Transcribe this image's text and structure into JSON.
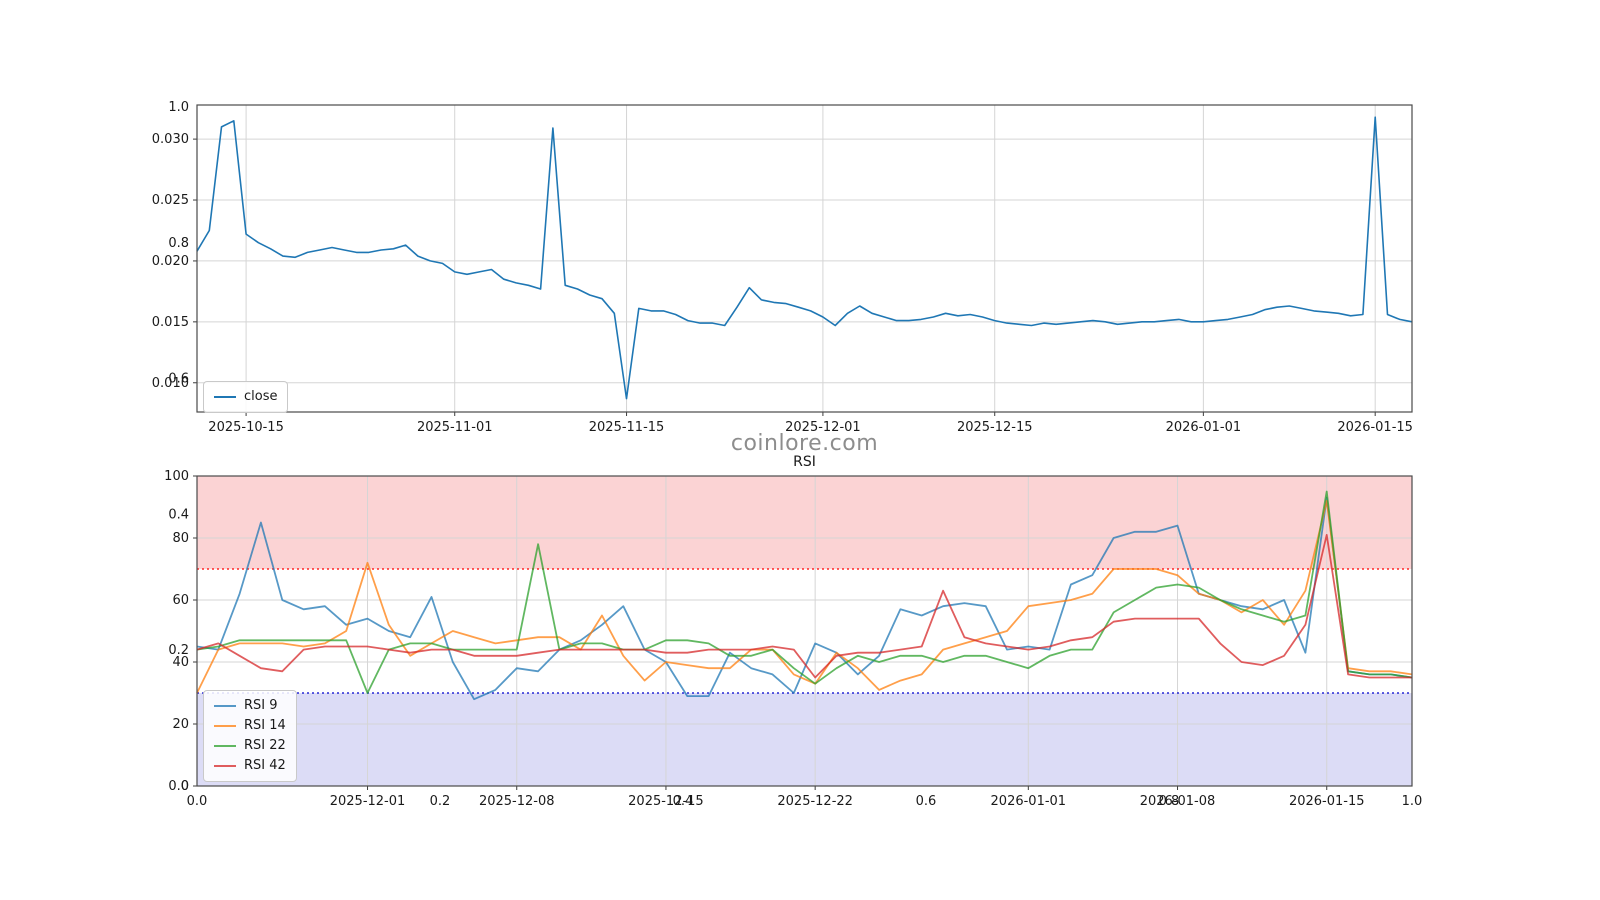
{
  "watermark": "coinlore.com",
  "overlay_axis": {
    "x_labels": [
      "0.0",
      "0.2",
      "0.4",
      "0.6",
      "0.8",
      "1.0"
    ],
    "y_labels": [
      "1.0",
      "0.8",
      "0.6",
      "0.4",
      "0.2",
      "0.0"
    ]
  },
  "chart_data": [
    {
      "type": "line",
      "title": "",
      "grid": true,
      "legend_position": "lower left",
      "ylim": [
        0.0076,
        0.0328
      ],
      "yticks": [
        0.01,
        0.015,
        0.02,
        0.025,
        0.03
      ],
      "ytick_labels": [
        "0.010",
        "0.015",
        "0.020",
        "0.025",
        "0.030"
      ],
      "xtick_labels": [
        "2025-10-15",
        "2025-11-01",
        "2025-11-15",
        "2025-12-01",
        "2025-12-15",
        "2026-01-01",
        "2026-01-15"
      ],
      "xtick_indices": [
        4,
        21,
        35,
        51,
        65,
        82,
        96
      ],
      "dates": [
        "2025-10-11",
        "2025-10-12",
        "2025-10-13",
        "2025-10-14",
        "2025-10-15",
        "2025-10-16",
        "2025-10-17",
        "2025-10-18",
        "2025-10-19",
        "2025-10-20",
        "2025-10-21",
        "2025-10-22",
        "2025-10-23",
        "2025-10-24",
        "2025-10-25",
        "2025-10-26",
        "2025-10-27",
        "2025-10-28",
        "2025-10-29",
        "2025-10-30",
        "2025-10-31",
        "2025-11-01",
        "2025-11-02",
        "2025-11-03",
        "2025-11-04",
        "2025-11-05",
        "2025-11-06",
        "2025-11-07",
        "2025-11-08",
        "2025-11-09",
        "2025-11-10",
        "2025-11-11",
        "2025-11-12",
        "2025-11-13",
        "2025-11-14",
        "2025-11-15",
        "2025-11-16",
        "2025-11-17",
        "2025-11-18",
        "2025-11-19",
        "2025-11-20",
        "2025-11-21",
        "2025-11-22",
        "2025-11-23",
        "2025-11-24",
        "2025-11-25",
        "2025-11-26",
        "2025-11-27",
        "2025-11-28",
        "2025-11-29",
        "2025-11-30",
        "2025-12-01",
        "2025-12-02",
        "2025-12-03",
        "2025-12-04",
        "2025-12-05",
        "2025-12-06",
        "2025-12-07",
        "2025-12-08",
        "2025-12-09",
        "2025-12-10",
        "2025-12-11",
        "2025-12-12",
        "2025-12-13",
        "2025-12-14",
        "2025-12-15",
        "2025-12-16",
        "2025-12-17",
        "2025-12-18",
        "2025-12-19",
        "2025-12-20",
        "2025-12-21",
        "2025-12-22",
        "2025-12-23",
        "2025-12-24",
        "2025-12-25",
        "2025-12-26",
        "2025-12-27",
        "2025-12-28",
        "2025-12-29",
        "2025-12-30",
        "2025-12-31",
        "2026-01-01",
        "2026-01-02",
        "2026-01-03",
        "2026-01-04",
        "2026-01-05",
        "2026-01-06",
        "2026-01-07",
        "2026-01-08",
        "2026-01-09",
        "2026-01-10",
        "2026-01-11",
        "2026-01-12",
        "2026-01-13",
        "2026-01-14",
        "2026-01-15",
        "2026-01-16",
        "2026-01-17",
        "2026-01-18"
      ],
      "series": [
        {
          "name": "close",
          "color": "#1f77b4",
          "values": [
            0.0208,
            0.0225,
            0.031,
            0.0315,
            0.0222,
            0.0215,
            0.021,
            0.0204,
            0.0203,
            0.0207,
            0.0209,
            0.0211,
            0.0209,
            0.0207,
            0.0207,
            0.0209,
            0.021,
            0.0213,
            0.0204,
            0.02,
            0.0198,
            0.0191,
            0.0189,
            0.0191,
            0.0193,
            0.0185,
            0.0182,
            0.018,
            0.0177,
            0.0309,
            0.018,
            0.0177,
            0.0172,
            0.0169,
            0.0157,
            0.0087,
            0.0161,
            0.0159,
            0.0159,
            0.0156,
            0.0151,
            0.0149,
            0.0149,
            0.0147,
            0.0162,
            0.0178,
            0.0168,
            0.0166,
            0.0165,
            0.0162,
            0.0159,
            0.0154,
            0.0147,
            0.0157,
            0.0163,
            0.0157,
            0.0154,
            0.0151,
            0.0151,
            0.0152,
            0.0154,
            0.0157,
            0.0155,
            0.0156,
            0.0154,
            0.0151,
            0.0149,
            0.0148,
            0.0147,
            0.0149,
            0.0148,
            0.0149,
            0.015,
            0.0151,
            0.015,
            0.0148,
            0.0149,
            0.015,
            0.015,
            0.0151,
            0.0152,
            0.015,
            0.015,
            0.0151,
            0.0152,
            0.0154,
            0.0156,
            0.016,
            0.0162,
            0.0163,
            0.0161,
            0.0159,
            0.0158,
            0.0157,
            0.0155,
            0.0156,
            0.0318,
            0.0156,
            0.0152,
            0.015
          ]
        }
      ]
    },
    {
      "type": "line",
      "title": "RSI",
      "grid": true,
      "legend_position": "lower left",
      "ylim": [
        0,
        100
      ],
      "yticks": [
        0,
        20,
        40,
        60,
        80,
        100
      ],
      "ytick_labels": [
        "0",
        "20",
        "40",
        "60",
        "80",
        "100"
      ],
      "overbought": 70,
      "oversold": 30,
      "band_colors": {
        "overbought": "#fbd3d4",
        "oversold": "#dcdcf6"
      },
      "threshold_colors": {
        "overbought": "#ff0000",
        "oversold": "#0000cd"
      },
      "xtick_labels": [
        "2025-12-01",
        "2025-12-08",
        "2025-12-15",
        "2025-12-22",
        "2026-01-01",
        "2026-01-08",
        "2026-01-15"
      ],
      "xtick_indices": [
        8,
        15,
        22,
        29,
        39,
        46,
        53
      ],
      "dates": [
        "2025-11-23",
        "2025-11-24",
        "2025-11-25",
        "2025-11-26",
        "2025-11-27",
        "2025-11-28",
        "2025-11-29",
        "2025-11-30",
        "2025-12-01",
        "2025-12-02",
        "2025-12-03",
        "2025-12-04",
        "2025-12-05",
        "2025-12-06",
        "2025-12-07",
        "2025-12-08",
        "2025-12-09",
        "2025-12-10",
        "2025-12-11",
        "2025-12-12",
        "2025-12-13",
        "2025-12-14",
        "2025-12-15",
        "2025-12-16",
        "2025-12-17",
        "2025-12-18",
        "2025-12-19",
        "2025-12-20",
        "2025-12-21",
        "2025-12-22",
        "2025-12-23",
        "2025-12-24",
        "2025-12-25",
        "2025-12-26",
        "2025-12-27",
        "2025-12-28",
        "2025-12-29",
        "2025-12-30",
        "2025-12-31",
        "2026-01-01",
        "2026-01-02",
        "2026-01-03",
        "2026-01-04",
        "2026-01-05",
        "2026-01-06",
        "2026-01-07",
        "2026-01-08",
        "2026-01-09",
        "2026-01-10",
        "2026-01-11",
        "2026-01-12",
        "2026-01-13",
        "2026-01-14",
        "2026-01-15",
        "2026-01-16",
        "2026-01-17",
        "2026-01-18",
        "2026-01-19"
      ],
      "series": [
        {
          "name": "RSI 9",
          "color": "#1f77b4",
          "values": [
            45,
            44,
            62,
            85,
            60,
            57,
            58,
            52,
            54,
            50,
            48,
            61,
            40,
            28,
            31,
            38,
            37,
            44,
            47,
            52,
            58,
            44,
            40,
            29,
            29,
            43,
            38,
            36,
            30,
            46,
            43,
            36,
            42,
            57,
            55,
            58,
            59,
            58,
            44,
            45,
            44,
            65,
            68,
            80,
            82,
            82,
            84,
            62,
            60,
            58,
            57,
            60,
            43,
            93,
            37,
            36,
            36,
            35
          ]
        },
        {
          "name": "RSI 14",
          "color": "#ff7f0e",
          "values": [
            30,
            44,
            46,
            46,
            46,
            45,
            46,
            50,
            72,
            52,
            42,
            46,
            50,
            48,
            46,
            47,
            48,
            48,
            44,
            55,
            42,
            34,
            40,
            39,
            38,
            38,
            44,
            44,
            36,
            33,
            43,
            38,
            31,
            34,
            36,
            44,
            46,
            48,
            50,
            58,
            59,
            60,
            62,
            70,
            70,
            70,
            68,
            62,
            60,
            56,
            60,
            52,
            63,
            92,
            38,
            37,
            37,
            36
          ]
        },
        {
          "name": "RSI 22",
          "color": "#2ca02c",
          "values": [
            44,
            45,
            47,
            47,
            47,
            47,
            47,
            47,
            30,
            44,
            46,
            46,
            44,
            44,
            44,
            44,
            78,
            44,
            46,
            46,
            44,
            44,
            47,
            47,
            46,
            42,
            42,
            44,
            38,
            33,
            38,
            42,
            40,
            42,
            42,
            40,
            42,
            42,
            40,
            38,
            42,
            44,
            44,
            56,
            60,
            64,
            65,
            64,
            60,
            57,
            55,
            53,
            55,
            95,
            37,
            36,
            36,
            35
          ]
        },
        {
          "name": "RSI 42",
          "color": "#d62728",
          "values": [
            44,
            46,
            42,
            38,
            37,
            44,
            45,
            45,
            45,
            44,
            43,
            44,
            44,
            42,
            42,
            42,
            43,
            44,
            44,
            44,
            44,
            44,
            43,
            43,
            44,
            44,
            44,
            45,
            44,
            35,
            42,
            43,
            43,
            44,
            45,
            63,
            48,
            46,
            45,
            44,
            45,
            47,
            48,
            53,
            54,
            54,
            54,
            54,
            46,
            40,
            39,
            42,
            52,
            81,
            36,
            35,
            35,
            35
          ]
        }
      ]
    }
  ]
}
